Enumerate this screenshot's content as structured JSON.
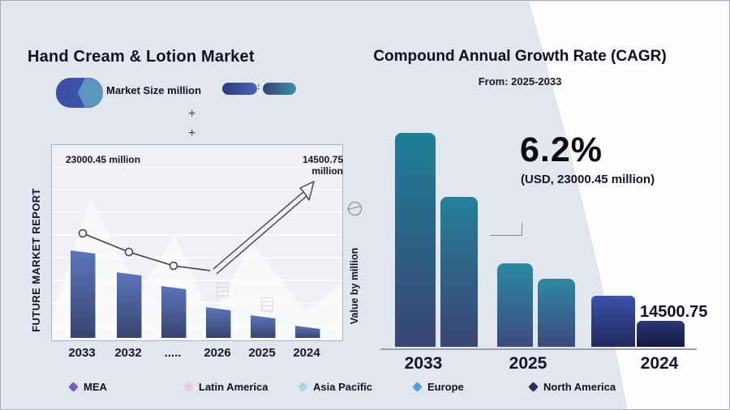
{
  "left_section": {
    "title": "Hand Cream & Lotion Market",
    "market_size_label": "Market Size million",
    "ratio_separator": ":",
    "annotation_left": "23000.45 million",
    "annotation_right": "14500.75 million",
    "side_label": "FUTURE MARKET REPORT",
    "value_axis_label": "Value by million"
  },
  "right_section": {
    "title": "Compound Annual Growth Rate (CAGR)",
    "subtitle": "From: 2025-2033",
    "cagr_value": "6.2%",
    "cagr_detail": "(USD, 23000.45 million)",
    "bar_annotation": "14500.75"
  },
  "legend": {
    "items": [
      {
        "label": "MEA",
        "color": "#7A5BC0"
      },
      {
        "label": "Latin America",
        "color": "#E9C8E6"
      },
      {
        "label": "Asia Pacific",
        "color": "#A9D6EA"
      },
      {
        "label": "Europe",
        "color": "#4E9FD8"
      },
      {
        "label": "North America",
        "color": "#2A3061"
      }
    ]
  },
  "colors": {
    "background": "#E2E6EF",
    "left_bar_top": "#5B76BC",
    "left_bar_bottom": "#38446E",
    "trend_line": "#3C414D"
  },
  "chart_data": [
    {
      "type": "bar",
      "title": "Hand Cream & Lotion Market — Market Size million",
      "categories": [
        "2033",
        "2032",
        ".....",
        "2026",
        "2025",
        "2024"
      ],
      "values": [
        100,
        75,
        59,
        35,
        26,
        14
      ],
      "values_note": "relative bar heights, 2033 = 100 (no numeric axis shown)",
      "annotations": [
        "23000.45 million",
        "14500.75 million"
      ],
      "overlay": "declining trend line with markers, then large arrow rising to upper right",
      "xlabel": "",
      "ylabel": "Value by million",
      "grid": true,
      "legend_position": "none"
    },
    {
      "type": "bar",
      "title": "Compound Annual Growth Rate (CAGR)",
      "subtitle": "From: 2025-2033",
      "categories": [
        "2033",
        "2025",
        "2024"
      ],
      "series": [
        {
          "name": "bar-1",
          "values": [
            100,
            39,
            24
          ]
        },
        {
          "name": "bar-2",
          "values": [
            70,
            32,
            12
          ]
        }
      ],
      "values_note": "relative bar heights, tallest 2033 bar = 100 (no numeric axis shown)",
      "bar_colors": [
        [
          [
            "#1E7E97",
            "#3A4573"
          ],
          [
            "#257F9B",
            "#3A4573"
          ]
        ],
        [
          [
            "#2B89A4",
            "#3C4B7E"
          ],
          [
            "#2E87A3",
            "#3C4B7E"
          ]
        ],
        [
          [
            "#3D53AB",
            "#20295E"
          ],
          [
            "#2B3878",
            "#141A40"
          ]
        ]
      ],
      "annotations": [
        "6.2%",
        "(USD, 23000.45 million)",
        "14500.75"
      ],
      "grid": false,
      "legend_position": "none"
    }
  ]
}
